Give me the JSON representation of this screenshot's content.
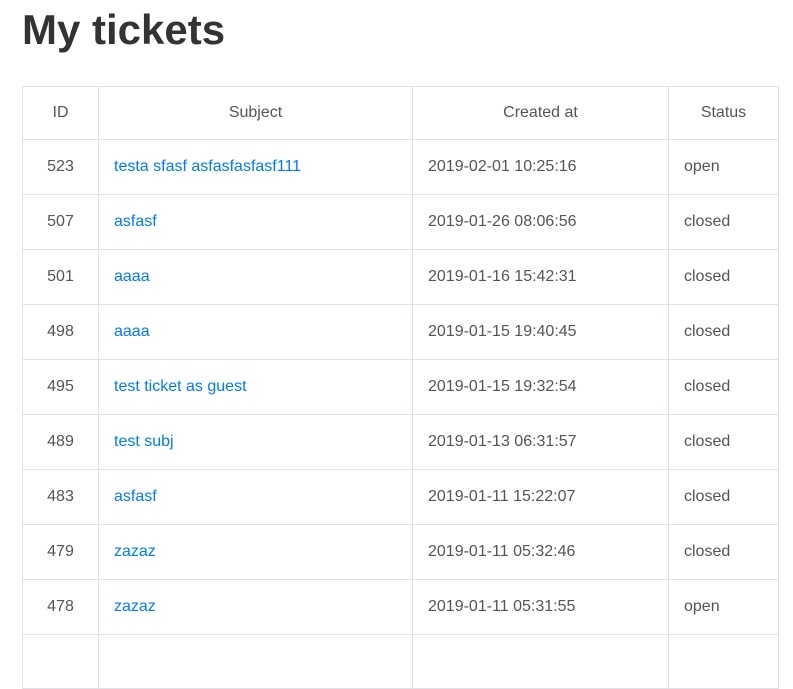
{
  "page": {
    "title": "My tickets"
  },
  "colors": {
    "link": "#007bff",
    "border": "#dee2e6",
    "text": "#555555",
    "heading": "#333333",
    "background": "#ffffff"
  },
  "table": {
    "columns": [
      {
        "key": "id",
        "label": "ID"
      },
      {
        "key": "subject",
        "label": "Subject"
      },
      {
        "key": "created_at",
        "label": "Created at"
      },
      {
        "key": "status",
        "label": "Status"
      }
    ],
    "rows": [
      {
        "id": "523",
        "subject": "testa sfasf asfasfasfasf111",
        "created_at": "2019-02-01 10:25:16",
        "status": "open"
      },
      {
        "id": "507",
        "subject": "asfasf",
        "created_at": "2019-01-26 08:06:56",
        "status": "closed"
      },
      {
        "id": "501",
        "subject": "aaaa",
        "created_at": "2019-01-16 15:42:31",
        "status": "closed"
      },
      {
        "id": "498",
        "subject": "aaaa",
        "created_at": "2019-01-15 19:40:45",
        "status": "closed"
      },
      {
        "id": "495",
        "subject": "test ticket as guest",
        "created_at": "2019-01-15 19:32:54",
        "status": "closed"
      },
      {
        "id": "489",
        "subject": "test subj",
        "created_at": "2019-01-13 06:31:57",
        "status": "closed"
      },
      {
        "id": "483",
        "subject": "asfasf",
        "created_at": "2019-01-11 15:22:07",
        "status": "closed"
      },
      {
        "id": "479",
        "subject": "zazaz",
        "created_at": "2019-01-11 05:32:46",
        "status": "closed"
      },
      {
        "id": "478",
        "subject": "zazaz",
        "created_at": "2019-01-11 05:31:55",
        "status": "open"
      }
    ],
    "partial_row_visible": true
  }
}
